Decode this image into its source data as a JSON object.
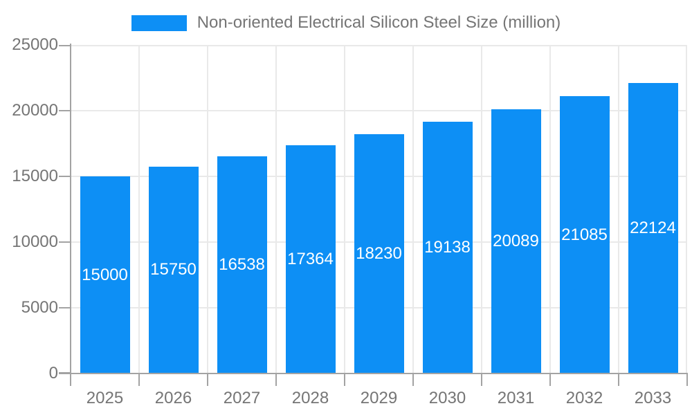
{
  "legend": {
    "label": "Non-oriented Electrical Silicon Steel Size (million)"
  },
  "chart_data": {
    "type": "bar",
    "title": "Non-oriented Electrical Silicon Steel Size (million)",
    "categories": [
      "2025",
      "2026",
      "2027",
      "2028",
      "2029",
      "2030",
      "2031",
      "2032",
      "2033"
    ],
    "values": [
      15000,
      15750,
      16538,
      17364,
      18230,
      19138,
      20089,
      21085,
      22124
    ],
    "value_labels": [
      "15000",
      "15750",
      "16538",
      "17364",
      "18230",
      "19138",
      "20089",
      "21085",
      "22124"
    ],
    "xlabel": "",
    "ylabel": "",
    "ylim": [
      0,
      25000
    ],
    "ytick_interval": 5000,
    "ytick_labels": [
      "0",
      "5000",
      "10000",
      "15000",
      "20000",
      "25000"
    ],
    "grid": true,
    "legend_position": "top",
    "bar_color": "#0d8ff5",
    "value_label_color": "#ffffff",
    "axis_text_color": "#757575",
    "axis_line_color": "#a3a3a3",
    "gridline_color": "#e9e9e9"
  }
}
